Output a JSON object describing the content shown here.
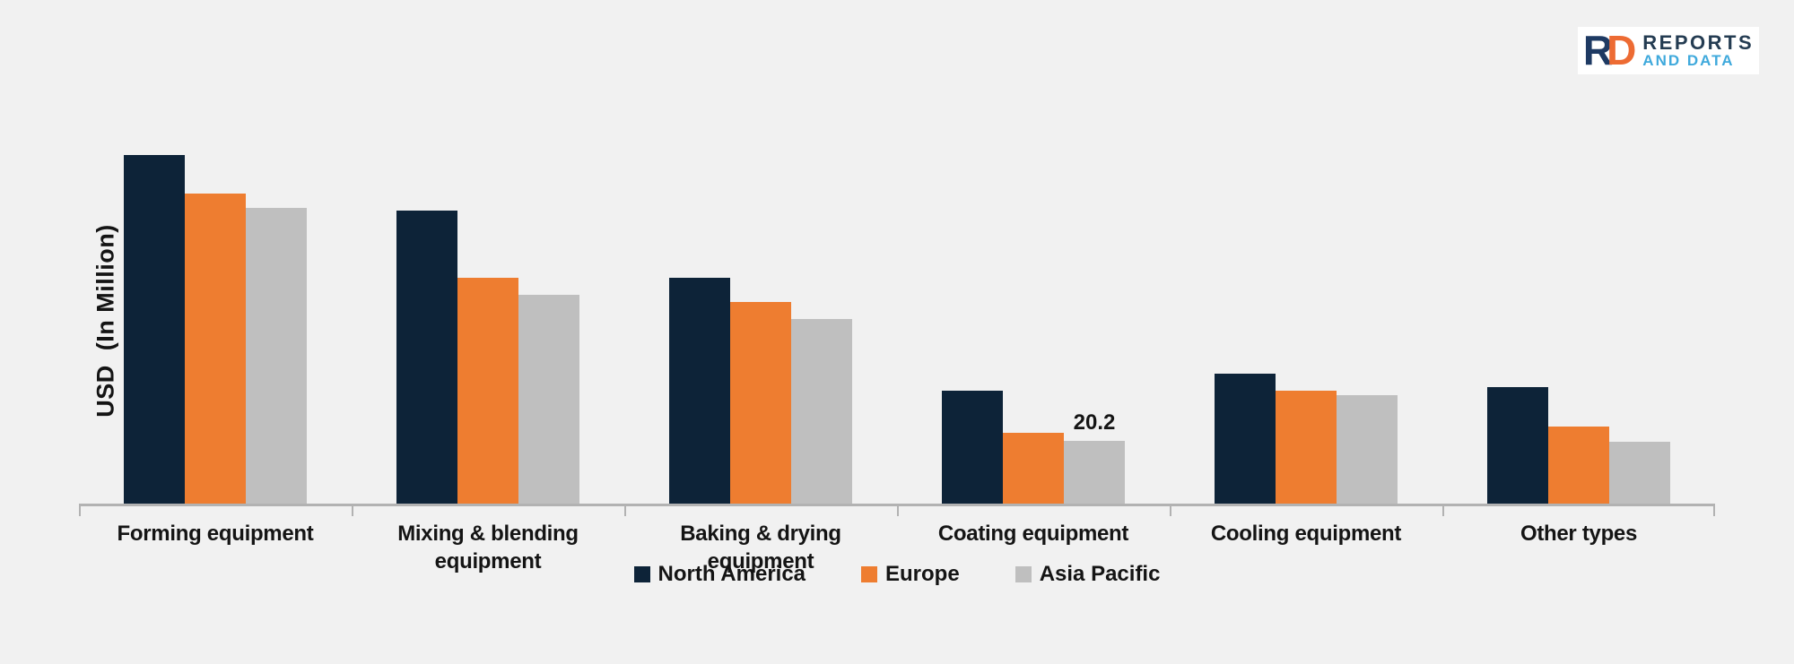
{
  "logo": {
    "mark_r": "R",
    "mark_d": "D",
    "text_line1": "REPORTS",
    "text_line2": "AND DATA",
    "colors": {
      "mark_navy": "#1e3a63",
      "mark_orange": "#ed6b33",
      "text_navy": "#243c52",
      "text_blue": "#3fa9dc",
      "background": "#ffffff"
    }
  },
  "chart_data": {
    "type": "bar",
    "title": "",
    "xlabel": "",
    "ylabel": "USD  (In Million)",
    "categories": [
      "Forming equipment",
      "Mixing & blending equipment",
      "Baking & drying equipment",
      "Coating equipment",
      "Cooling equipment",
      "Other types"
    ],
    "series": [
      {
        "name": "North America",
        "color": "#0d2338",
        "values": [
          112.5,
          94.5,
          73.0,
          36.5,
          42.0,
          37.5
        ],
        "labels": [
          null,
          null,
          null,
          null,
          null,
          null
        ]
      },
      {
        "name": "Europe",
        "color": "#ee7d30",
        "values": [
          100.0,
          73.0,
          65.0,
          23.0,
          36.5,
          25.0
        ],
        "labels": [
          null,
          null,
          null,
          null,
          null,
          null
        ]
      },
      {
        "name": "Asia Pacific",
        "color": "#bfbfbf",
        "values": [
          95.5,
          67.5,
          59.5,
          20.2,
          35.0,
          20.0
        ],
        "labels": [
          null,
          null,
          null,
          "20.2",
          null,
          null
        ]
      }
    ],
    "ylim": [
      0,
      125
    ],
    "grid": false,
    "legend_position": "bottom",
    "axis_color": "#b2b2b2",
    "background_color": "#f1f1f1"
  }
}
